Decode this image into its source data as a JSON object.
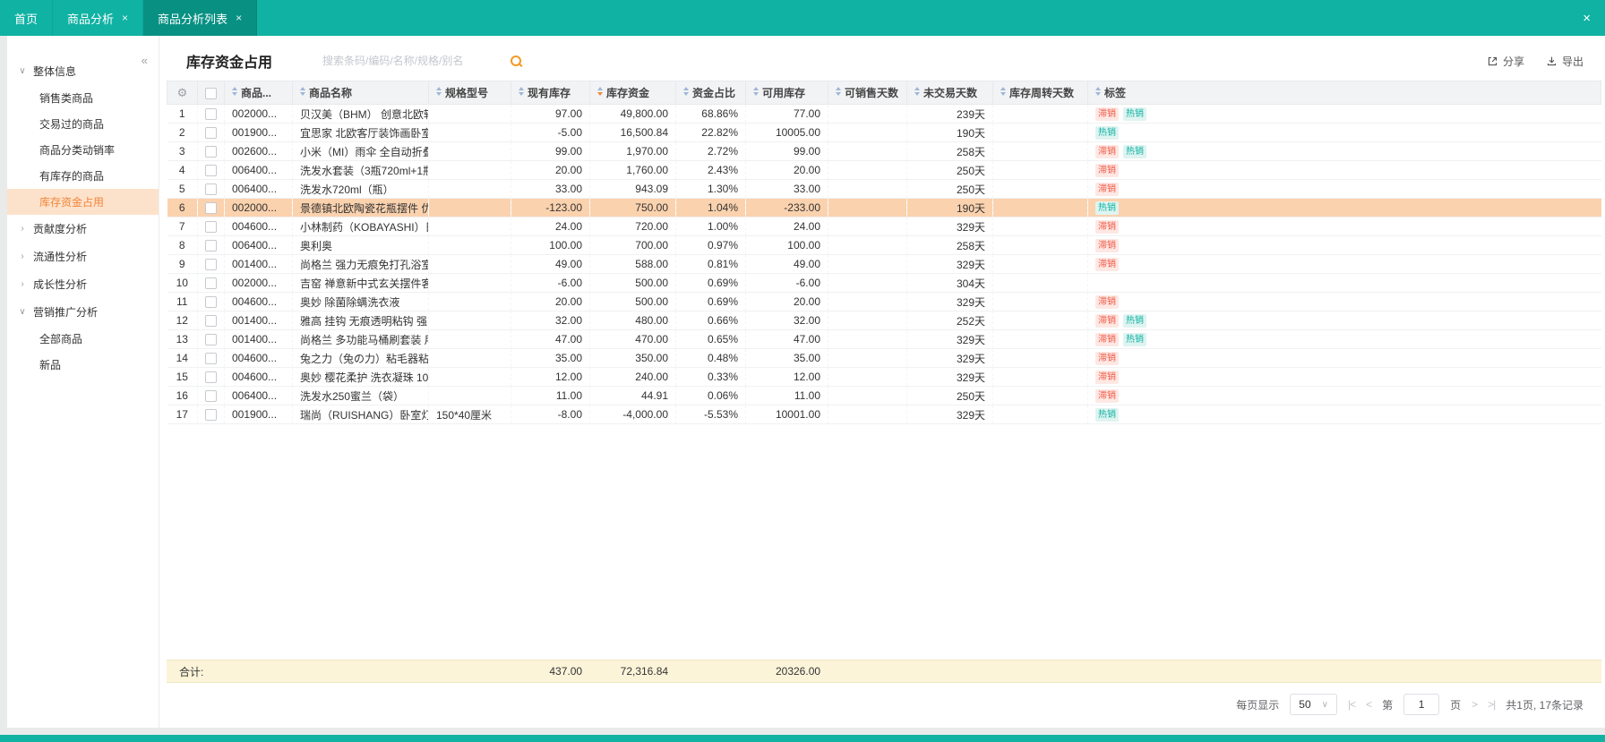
{
  "colors": {
    "teal": "#10b2a3",
    "teal_dark": "#089183",
    "accent_orange": "#f59a23",
    "row_highlight": "#fbd2ae",
    "tag_red": "#f15642",
    "tag_teal": "#0fb2a2"
  },
  "topbar": {
    "tabs": [
      {
        "label": "首页",
        "closable": false,
        "active": false
      },
      {
        "label": "商品分析",
        "closable": true,
        "active": false
      },
      {
        "label": "商品分析列表",
        "closable": true,
        "active": true
      }
    ],
    "close_all_icon": "×"
  },
  "sidebar": {
    "collapse_icon": "«",
    "sections": [
      {
        "label": "整体信息",
        "expanded": true,
        "children": [
          {
            "label": "销售类商品",
            "active": false
          },
          {
            "label": "交易过的商品",
            "active": false
          },
          {
            "label": "商品分类动销率",
            "active": false
          },
          {
            "label": "有库存的商品",
            "active": false
          },
          {
            "label": "库存资金占用",
            "active": true
          }
        ]
      },
      {
        "label": "贡献度分析",
        "expanded": false,
        "children": []
      },
      {
        "label": "流通性分析",
        "expanded": false,
        "children": []
      },
      {
        "label": "成长性分析",
        "expanded": false,
        "children": []
      },
      {
        "label": "营销推广分析",
        "expanded": true,
        "children": [
          {
            "label": "全部商品",
            "active": false
          },
          {
            "label": "新品",
            "active": false
          }
        ]
      }
    ]
  },
  "toolbar": {
    "title": "库存资金占用",
    "search_placeholder": "搜索条码/编码/名称/规格/别名",
    "share_label": "分享",
    "export_label": "导出"
  },
  "table": {
    "columns": [
      "商品...",
      "商品名称",
      "规格型号",
      "现有库存",
      "库存资金",
      "资金占比",
      "可用库存",
      "可销售天数",
      "未交易天数",
      "库存周转天数",
      "标签"
    ],
    "tag_styles": {
      "滞销": "red",
      "热销": "teal"
    },
    "rows": [
      {
        "index": 1,
        "code": "002000...",
        "name": "贝汉美（BHM） 创意北欧轻",
        "spec": "",
        "stock": "97.00",
        "fund": "49,800.00",
        "ratio": "68.86%",
        "available": "77.00",
        "sale_days": "",
        "no_trade_days": "239天",
        "turnover_days": "",
        "tags": [
          "滞销",
          "热销"
        ],
        "highlight": false
      },
      {
        "index": 2,
        "code": "001900...",
        "name": "宜思家 北欧客厅装饰画卧室",
        "spec": "",
        "stock": "-5.00",
        "fund": "16,500.84",
        "ratio": "22.82%",
        "available": "10005.00",
        "sale_days": "",
        "no_trade_days": "190天",
        "turnover_days": "",
        "tags": [
          "热销"
        ],
        "highlight": false
      },
      {
        "index": 3,
        "code": "002600...",
        "name": "小米（MI）雨伞 全自动折叠",
        "spec": "",
        "stock": "99.00",
        "fund": "1,970.00",
        "ratio": "2.72%",
        "available": "99.00",
        "sale_days": "",
        "no_trade_days": "258天",
        "turnover_days": "",
        "tags": [
          "滞销",
          "热销"
        ],
        "highlight": false
      },
      {
        "index": 4,
        "code": "006400...",
        "name": "洗发水套装（3瓶720ml+1瓶",
        "spec": "",
        "stock": "20.00",
        "fund": "1,760.00",
        "ratio": "2.43%",
        "available": "20.00",
        "sale_days": "",
        "no_trade_days": "250天",
        "turnover_days": "",
        "tags": [
          "滞销"
        ],
        "highlight": false
      },
      {
        "index": 5,
        "code": "006400...",
        "name": "洗发水720ml（瓶）",
        "spec": "",
        "stock": "33.00",
        "fund": "943.09",
        "ratio": "1.30%",
        "available": "33.00",
        "sale_days": "",
        "no_trade_days": "250天",
        "turnover_days": "",
        "tags": [
          "滞销"
        ],
        "highlight": false
      },
      {
        "index": 6,
        "code": "002000...",
        "name": "景德镇北欧陶瓷花瓶摆件 优",
        "spec": "",
        "stock": "-123.00",
        "fund": "750.00",
        "ratio": "1.04%",
        "available": "-233.00",
        "sale_days": "",
        "no_trade_days": "190天",
        "turnover_days": "",
        "tags": [
          "热销"
        ],
        "highlight": true
      },
      {
        "index": 7,
        "code": "004600...",
        "name": "小林制药（KOBAYASHI）日",
        "spec": "",
        "stock": "24.00",
        "fund": "720.00",
        "ratio": "1.00%",
        "available": "24.00",
        "sale_days": "",
        "no_trade_days": "329天",
        "turnover_days": "",
        "tags": [
          "滞销"
        ],
        "highlight": false
      },
      {
        "index": 8,
        "code": "006400...",
        "name": "奥利奥",
        "spec": "",
        "stock": "100.00",
        "fund": "700.00",
        "ratio": "0.97%",
        "available": "100.00",
        "sale_days": "",
        "no_trade_days": "258天",
        "turnover_days": "",
        "tags": [
          "滞销"
        ],
        "highlight": false
      },
      {
        "index": 9,
        "code": "001400...",
        "name": "尚格兰 强力无痕免打孔浴室",
        "spec": "",
        "stock": "49.00",
        "fund": "588.00",
        "ratio": "0.81%",
        "available": "49.00",
        "sale_days": "",
        "no_trade_days": "329天",
        "turnover_days": "",
        "tags": [
          "滞销"
        ],
        "highlight": false
      },
      {
        "index": 10,
        "code": "002000...",
        "name": "吉窑 禅意新中式玄关摆件客",
        "spec": "",
        "stock": "-6.00",
        "fund": "500.00",
        "ratio": "0.69%",
        "available": "-6.00",
        "sale_days": "",
        "no_trade_days": "304天",
        "turnover_days": "",
        "tags": [],
        "highlight": false
      },
      {
        "index": 11,
        "code": "004600...",
        "name": "奥妙 除菌除螨洗衣液",
        "spec": "",
        "stock": "20.00",
        "fund": "500.00",
        "ratio": "0.69%",
        "available": "20.00",
        "sale_days": "",
        "no_trade_days": "329天",
        "turnover_days": "",
        "tags": [
          "滞销"
        ],
        "highlight": false
      },
      {
        "index": 12,
        "code": "001400...",
        "name": "雅高 挂钩 无痕透明粘钩 强",
        "spec": "",
        "stock": "32.00",
        "fund": "480.00",
        "ratio": "0.66%",
        "available": "32.00",
        "sale_days": "",
        "no_trade_days": "252天",
        "turnover_days": "",
        "tags": [
          "滞销",
          "热销"
        ],
        "highlight": false
      },
      {
        "index": 13,
        "code": "001400...",
        "name": "尚格兰 多功能马桶刷套装 用",
        "spec": "",
        "stock": "47.00",
        "fund": "470.00",
        "ratio": "0.65%",
        "available": "47.00",
        "sale_days": "",
        "no_trade_days": "329天",
        "turnover_days": "",
        "tags": [
          "滞销",
          "热销"
        ],
        "highlight": false
      },
      {
        "index": 14,
        "code": "004600...",
        "name": "兔之力（兔の力）粘毛器粘",
        "spec": "",
        "stock": "35.00",
        "fund": "350.00",
        "ratio": "0.48%",
        "available": "35.00",
        "sale_days": "",
        "no_trade_days": "329天",
        "turnover_days": "",
        "tags": [
          "滞销"
        ],
        "highlight": false
      },
      {
        "index": 15,
        "code": "004600...",
        "name": "奥妙 樱花柔护 洗衣凝珠 10",
        "spec": "",
        "stock": "12.00",
        "fund": "240.00",
        "ratio": "0.33%",
        "available": "12.00",
        "sale_days": "",
        "no_trade_days": "329天",
        "turnover_days": "",
        "tags": [
          "滞销"
        ],
        "highlight": false
      },
      {
        "index": 16,
        "code": "006400...",
        "name": "洗发水250蜜兰（袋）",
        "spec": "",
        "stock": "11.00",
        "fund": "44.91",
        "ratio": "0.06%",
        "available": "11.00",
        "sale_days": "",
        "no_trade_days": "250天",
        "turnover_days": "",
        "tags": [
          "滞销"
        ],
        "highlight": false
      },
      {
        "index": 17,
        "code": "001900...",
        "name": "瑞尚（RUISHANG）卧室灯",
        "spec": "150*40厘米",
        "stock": "-8.00",
        "fund": "-4,000.00",
        "ratio": "-5.53%",
        "available": "10001.00",
        "sale_days": "",
        "no_trade_days": "329天",
        "turnover_days": "",
        "tags": [
          "热销"
        ],
        "highlight": false
      }
    ],
    "total": {
      "label": "合计:",
      "stock": "437.00",
      "fund": "72,316.84",
      "available": "20326.00"
    }
  },
  "pagination": {
    "per_page_label": "每页显示",
    "per_page": "50",
    "first_icon": "|<",
    "prev_icon": "<",
    "page_prefix": "第",
    "page": "1",
    "page_suffix": "页",
    "next_icon": ">",
    "last_icon": ">|",
    "summary": "共1页, 17条记录"
  }
}
